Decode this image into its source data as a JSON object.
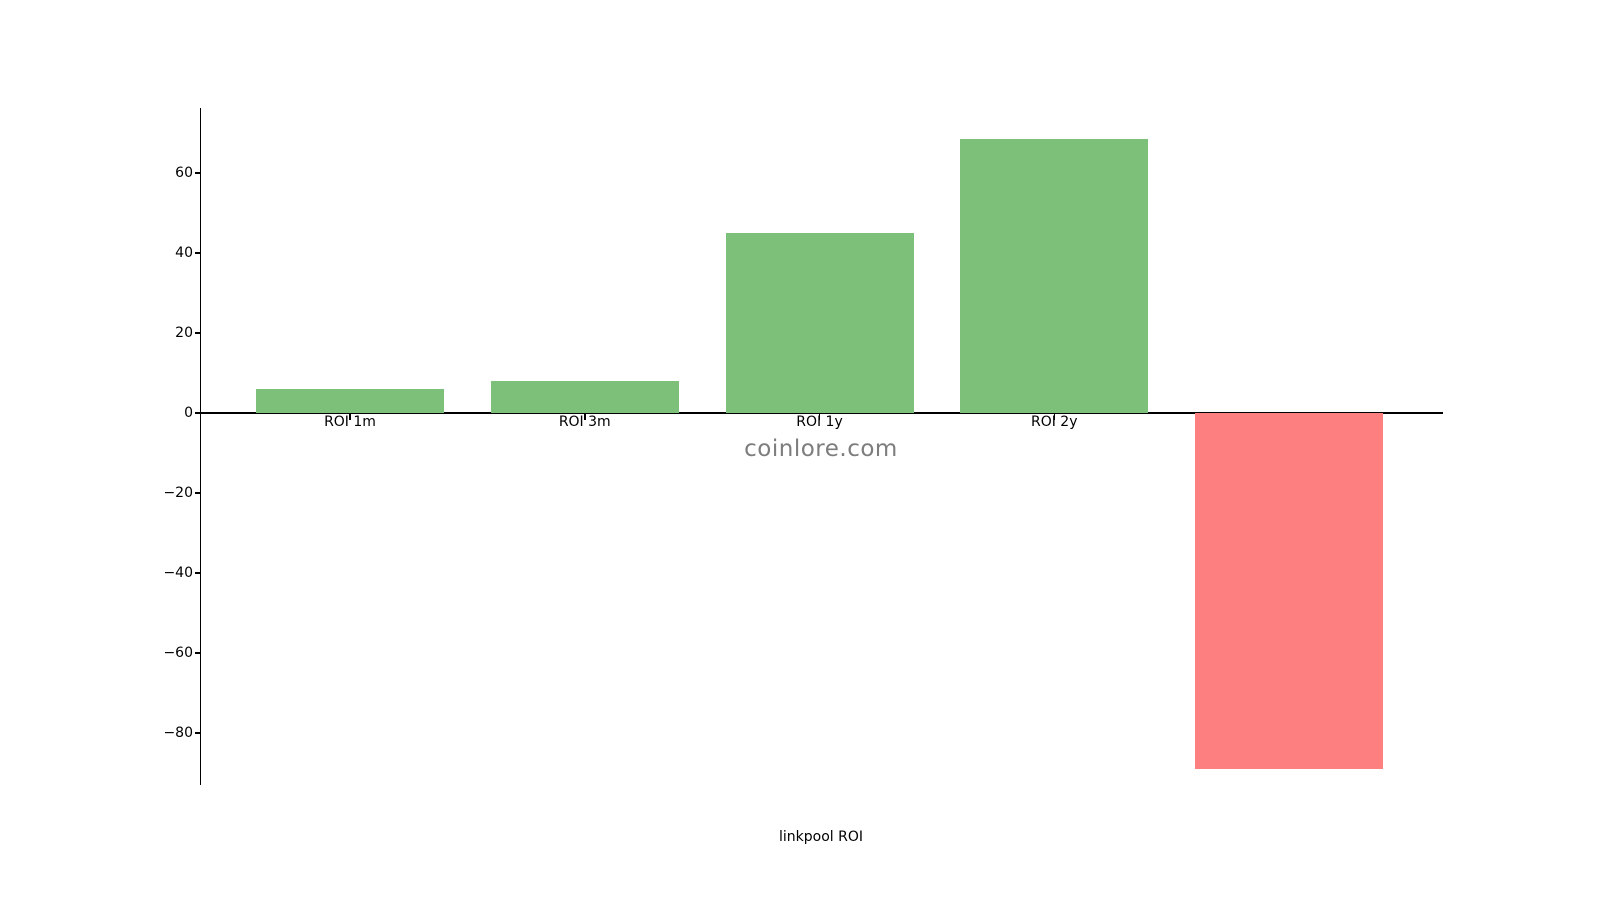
{
  "chart_data": {
    "type": "bar",
    "categories": [
      "ROI 1m",
      "ROI 3m",
      "ROI 1y",
      "ROI 2y",
      ""
    ],
    "values": [
      6,
      8,
      45,
      68.5,
      -89
    ],
    "series": [
      {
        "name": "linkpool ROI",
        "values": [
          6,
          8,
          45,
          68.5,
          -89
        ]
      }
    ],
    "title": "",
    "xlabel": "linkpool ROI",
    "ylabel": "",
    "ylim": [
      -93,
      76
    ],
    "yticks": [
      60,
      40,
      20,
      0,
      -20,
      -40,
      -60,
      -80
    ],
    "ytick_labels": [
      "60",
      "40",
      "20",
      "0",
      "−20",
      "−40",
      "−60",
      "−80"
    ],
    "grid": false,
    "legend": null,
    "positive_color": "#7cc07a",
    "negative_color": "#fd7f7f",
    "axis_color": "#000000"
  },
  "watermark": {
    "text": "coinlore.com",
    "color": "#7d7d7d"
  }
}
